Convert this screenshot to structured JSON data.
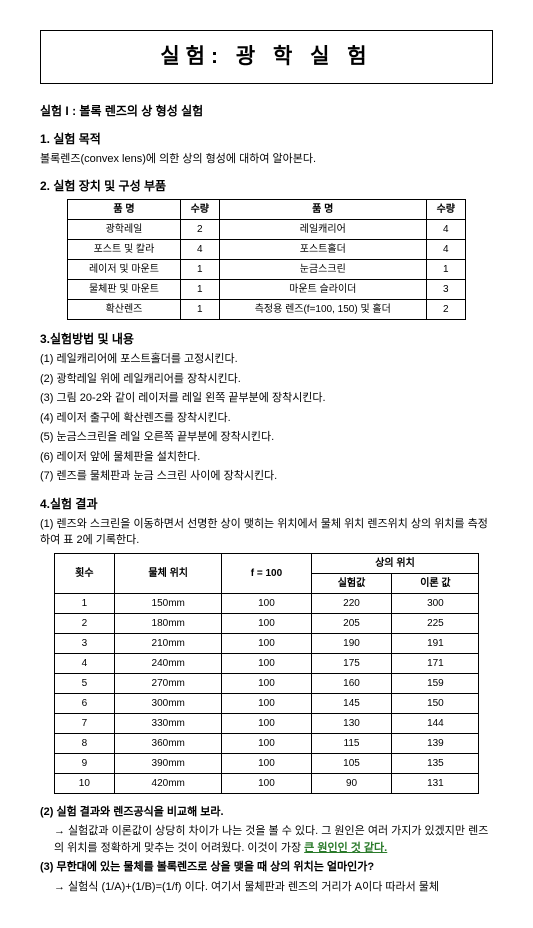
{
  "title": "실험: 광 학 실 험",
  "sub_experiment": "실험 I : 볼록 렌즈의 상 형성 실험",
  "section1": {
    "heading": "1. 실험 목적",
    "text": "볼록렌즈(convex lens)에 의한 상의 형성에 대하여 알아본다."
  },
  "section2": {
    "heading": "2. 실험 장치 및 구성 부품",
    "headers": [
      "품 명",
      "수량",
      "품 명",
      "수량"
    ],
    "rows": [
      [
        "광학레일",
        "2",
        "레일캐리어",
        "4"
      ],
      [
        "포스트 및 칼라",
        "4",
        "포스트홀더",
        "4"
      ],
      [
        "레이저 및 마운트",
        "1",
        "눈금스크린",
        "1"
      ],
      [
        "물체판 및 마운트",
        "1",
        "마운트 슬라이더",
        "3"
      ],
      [
        "확산렌즈",
        "1",
        "측정용 렌즈(f=100, 150) 및 홀더",
        "2"
      ]
    ]
  },
  "section3": {
    "heading": "3.실험방법 및 내용",
    "items": [
      "(1) 레일캐리어에 포스트홀더를 고정시킨다.",
      "(2) 광학레일 위에 레일캐리어를 장착시킨다.",
      "(3) 그림 20-2와 같이 레이저를 레일 왼쪽 끝부분에 장착시킨다.",
      "(4) 레이저 출구에 확산렌즈를 장착시킨다.",
      "(5) 눈금스크린을 레일 오른쪽 끝부분에 장착시킨다.",
      "(6) 레이저 앞에 물체판을 설치한다.",
      "(7) 렌즈를 물체판과 눈금 스크린 사이에 장착시킨다."
    ]
  },
  "section4": {
    "heading": "4.실험 결과",
    "desc": "(1) 렌즈와 스크린을 이동하면서 선명한 상이 맺히는 위치에서 물체 위치 렌즈위치 상의 위치를 측정하여 표 2에 기록한다.",
    "headers_top": {
      "count": "횟수",
      "obj": "물체 위치",
      "f": "f = 100",
      "img_pos": "상의 위치"
    },
    "headers_sub": {
      "exp": "실험값",
      "theory": "이론 값"
    },
    "rows": [
      [
        "1",
        "150mm",
        "100",
        "220",
        "300"
      ],
      [
        "2",
        "180mm",
        "100",
        "205",
        "225"
      ],
      [
        "3",
        "210mm",
        "100",
        "190",
        "191"
      ],
      [
        "4",
        "240mm",
        "100",
        "175",
        "171"
      ],
      [
        "5",
        "270mm",
        "100",
        "160",
        "159"
      ],
      [
        "6",
        "300mm",
        "100",
        "145",
        "150"
      ],
      [
        "7",
        "330mm",
        "100",
        "130",
        "144"
      ],
      [
        "8",
        "360mm",
        "100",
        "115",
        "139"
      ],
      [
        "9",
        "390mm",
        "100",
        "105",
        "135"
      ],
      [
        "10",
        "420mm",
        "100",
        "90",
        "131"
      ]
    ],
    "q2_heading": "(2) 실험 결과와 렌즈공식을 비교해 보라.",
    "q2_prefix": "→ 실험값과 이론값이 상당히 차이가 나는 것을 볼 수 있다. 그 원인은 여러 가지가 있겠지만 렌즈의 위치를 정확하게 맞추는 것이 어려웠다. 이것이 가장 ",
    "q2_underlined": "큰 원인인 것 같다.",
    "q3_heading": "(3) 무한대에 있는 물체를 볼록렌즈로 상을 맺을 때 상의 위치는 얼마인가?",
    "q3_text": "→ 실험식 (1/A)+(1/B)=(1/f) 이다. 여기서 물체판과 렌즈의 거리가 A이다 따라서 물체"
  }
}
